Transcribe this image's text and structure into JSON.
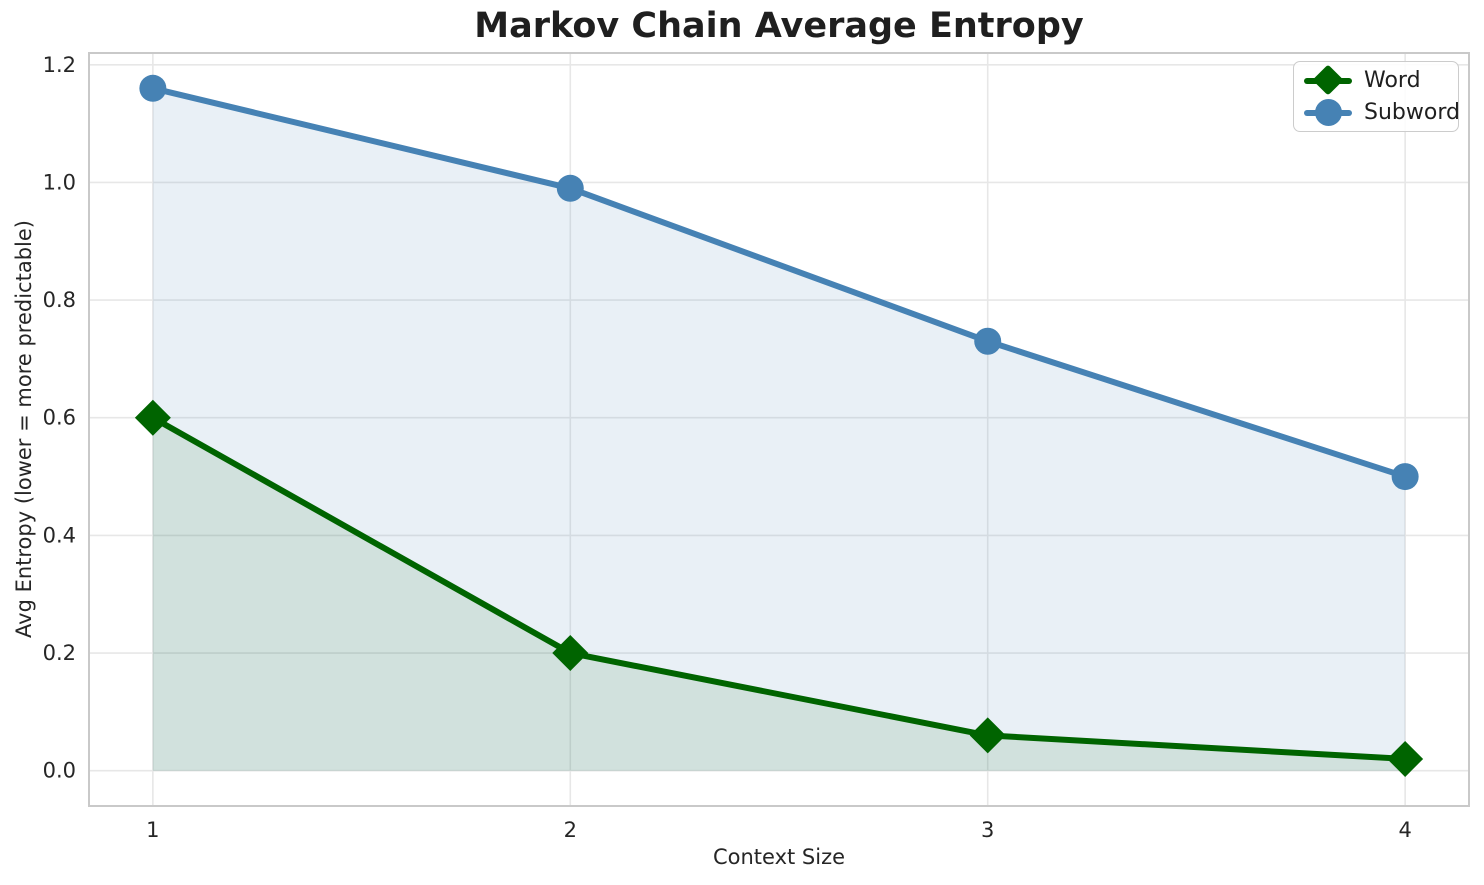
{
  "chart_data": {
    "type": "line",
    "title": "Markov Chain Average Entropy",
    "xlabel": "Context Size",
    "ylabel": "Avg Entropy (lower = more predictable)",
    "x": [
      1,
      2,
      3,
      4
    ],
    "series": [
      {
        "name": "Word",
        "values": [
          0.6,
          0.2,
          0.06,
          0.02
        ],
        "color": "#006400",
        "marker": "diamond",
        "fill_to_zero": true,
        "fill_alpha": 0.1
      },
      {
        "name": "Subword",
        "values": [
          1.16,
          0.99,
          0.73,
          0.5
        ],
        "color": "#4682B4",
        "marker": "circle",
        "fill_to_zero": true,
        "fill_alpha": 0.12
      }
    ],
    "xticks": [
      1,
      2,
      3,
      4
    ],
    "yticks": [
      0.0,
      0.2,
      0.4,
      0.6,
      0.8,
      1.0,
      1.2
    ],
    "xlim": [
      0.847,
      4.153
    ],
    "ylim": [
      -0.06,
      1.22
    ],
    "grid": true,
    "legend_position": "upper right",
    "line_width": 6,
    "colors": {
      "grid": "#e7e7e7",
      "spine": "#c9c9c9",
      "text": "#262626",
      "title": "#1f1f1f",
      "legend_border": "#cccccc",
      "background": "#ffffff"
    }
  }
}
